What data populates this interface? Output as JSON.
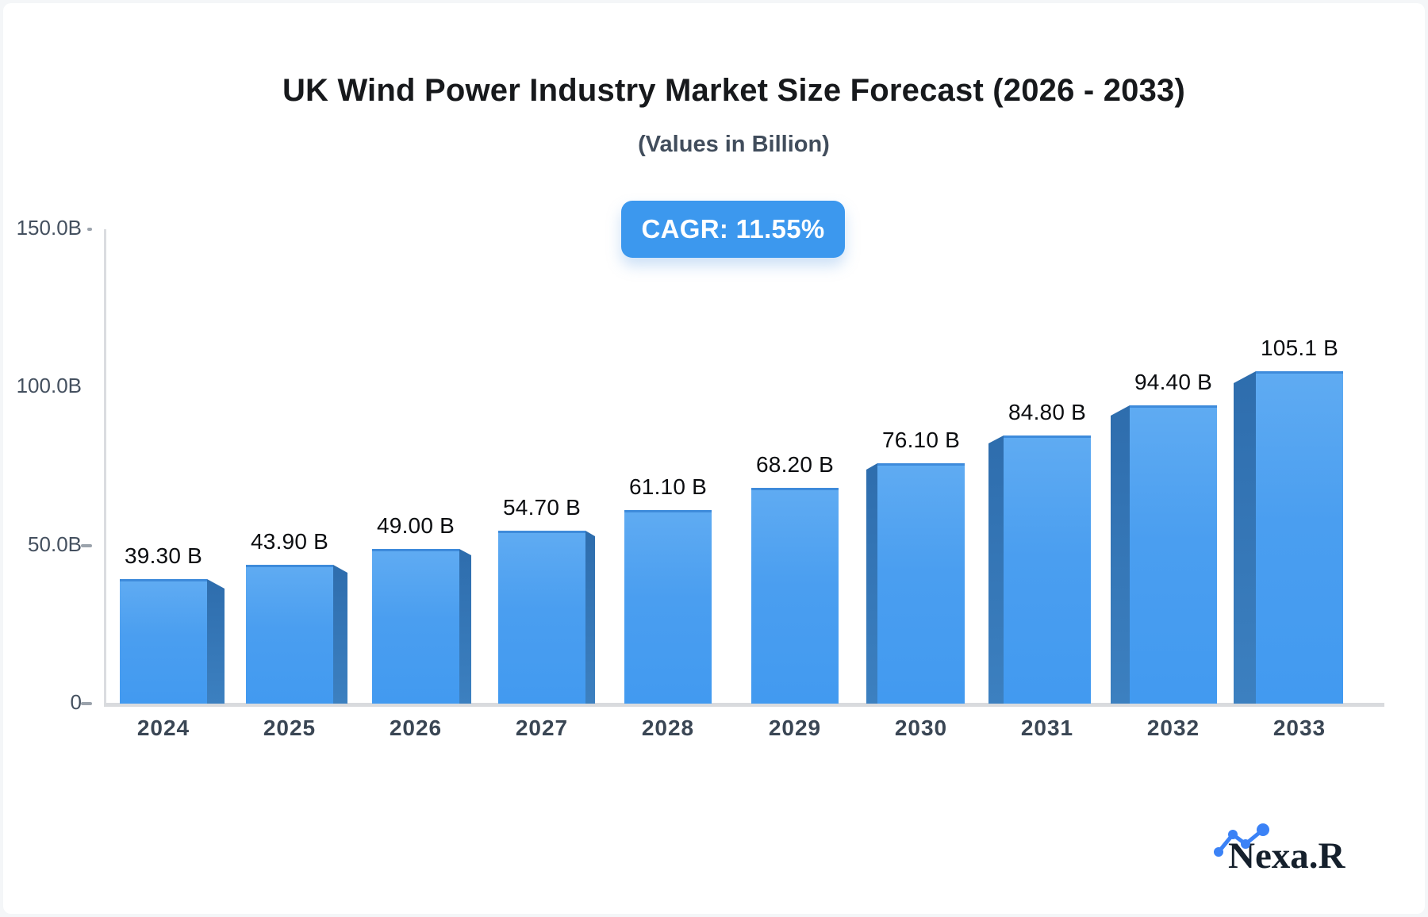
{
  "header": {
    "title": "UK Wind Power Industry Market Size Forecast (2026 - 2033)",
    "subtitle": "(Values in Billion)"
  },
  "badge": {
    "label": "CAGR: 11.55%",
    "background": "#3c98ee",
    "text_color": "#ffffff"
  },
  "chart_data": {
    "type": "bar",
    "title": "UK Wind Power Industry Market Size Forecast (2026 - 2033)",
    "subtitle": "(Values in Billion)",
    "categories": [
      "2024",
      "2025",
      "2026",
      "2027",
      "2028",
      "2029",
      "2030",
      "2031",
      "2032",
      "2033"
    ],
    "values": [
      39.3,
      43.9,
      49.0,
      54.7,
      61.1,
      68.2,
      76.1,
      84.8,
      94.4,
      105.1
    ],
    "data_labels": [
      "39.30 B",
      "43.90 B",
      "49.00 B",
      "54.70 B",
      "61.10 B",
      "68.20 B",
      "76.10 B",
      "84.80 B",
      "94.40 B",
      "105.1 B"
    ],
    "xlabel": "",
    "ylabel": "",
    "ylim": [
      0,
      150
    ],
    "yticks": [
      {
        "label": "150.0B",
        "value": 150
      },
      {
        "label": "100.0B",
        "value": 100
      },
      {
        "label": "50.0B",
        "value": 50
      },
      {
        "label": "0",
        "value": 0
      }
    ],
    "grid": false,
    "legend": "none",
    "bar_face_color": "#459bef",
    "bar_side_color": "#3273b2",
    "axis_color": "#dadce0",
    "label_color": "#0b0d10",
    "style": "3d-perspective-bars"
  },
  "logo": {
    "text": "Nexa.R",
    "icon": "line-chart-icon",
    "accent_color": "#3b82f6",
    "text_color": "#15202c"
  }
}
